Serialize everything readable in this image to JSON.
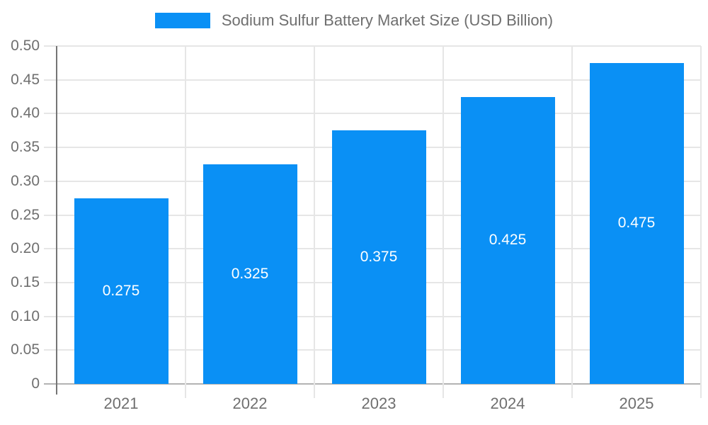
{
  "legend": {
    "label": "Sodium Sulfur Battery Market Size (USD Billion)"
  },
  "chart_data": {
    "type": "bar",
    "title": "Sodium Sulfur Battery Market Size (USD Billion)",
    "categories": [
      "2021",
      "2022",
      "2023",
      "2024",
      "2025"
    ],
    "values": [
      0.275,
      0.325,
      0.375,
      0.425,
      0.475
    ],
    "bar_labels": [
      "0.275",
      "0.325",
      "0.375",
      "0.425",
      "0.475"
    ],
    "xlabel": "",
    "ylabel": "",
    "ylim": [
      0,
      0.5
    ],
    "y_tick_step": 0.05,
    "y_tick_labels": [
      "0",
      "0.05",
      "0.10",
      "0.15",
      "0.20",
      "0.25",
      "0.30",
      "0.35",
      "0.40",
      "0.45",
      "0.50"
    ],
    "grid": true,
    "legend_position": "top",
    "colors": {
      "bar": "#0a90f5",
      "bar_value_text": "#ffffff",
      "axis_text": "#6f6f6f",
      "gridline": "#e6e6e6",
      "zero_line": "#b3b3b3",
      "axis_line": "#757575",
      "background": "#ffffff"
    }
  }
}
